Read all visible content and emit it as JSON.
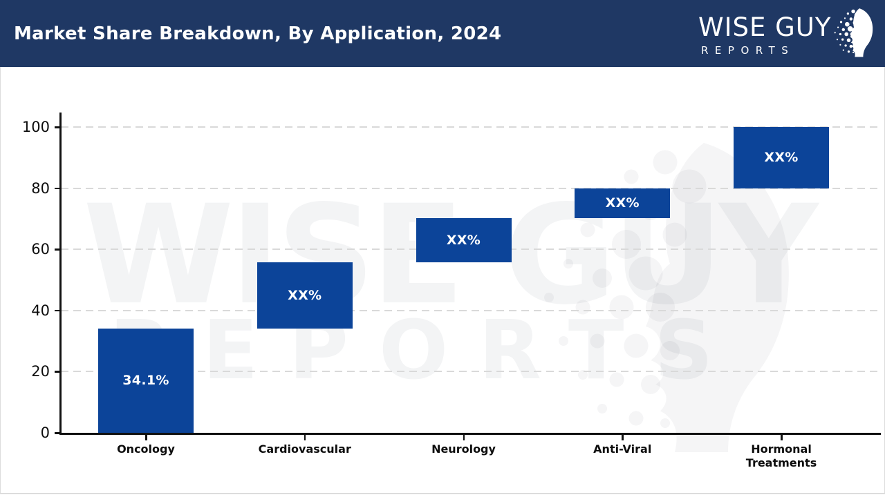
{
  "header": {
    "title": "Market Share Breakdown, By Application, 2024",
    "bg_color": "#1f3864",
    "logo": {
      "line1": "WISE GUY",
      "line2": "REPORTS"
    }
  },
  "watermark": {
    "line1": "WISE GUY",
    "line2": "REPORTS"
  },
  "chart_data": {
    "type": "bar",
    "subtype": "waterfall",
    "title": "Market Share Breakdown, By Application, 2024",
    "xlabel": "",
    "ylabel": "",
    "categories": [
      "Oncology",
      "Cardiovascular",
      "Neurology",
      "Anti-Viral",
      "Hormonal\nTreatments"
    ],
    "segments": [
      {
        "category": "Oncology",
        "start": 0,
        "end": 34.1,
        "value": 34.1,
        "label": "34.1%"
      },
      {
        "category": "Cardiovascular",
        "start": 34.1,
        "end": 55.8,
        "value": 21.7,
        "label": "XX%"
      },
      {
        "category": "Neurology",
        "start": 55.8,
        "end": 70.2,
        "value": 14.4,
        "label": "XX%"
      },
      {
        "category": "Anti-Viral",
        "start": 70.2,
        "end": 80.0,
        "value": 9.8,
        "label": "XX%"
      },
      {
        "category": "Hormonal\nTreatments",
        "start": 80.0,
        "end": 100.0,
        "value": 20.0,
        "label": "XX%"
      }
    ],
    "yticks": [
      0,
      20,
      40,
      60,
      80,
      100
    ],
    "ylim": [
      0,
      105
    ],
    "grid": "horizontal-dashed",
    "legend": "none",
    "bar_color": "#0c4499",
    "bar_label_color": "#ffffff",
    "axis_color": "#111111",
    "gridline_color": "#d9d9d9"
  }
}
